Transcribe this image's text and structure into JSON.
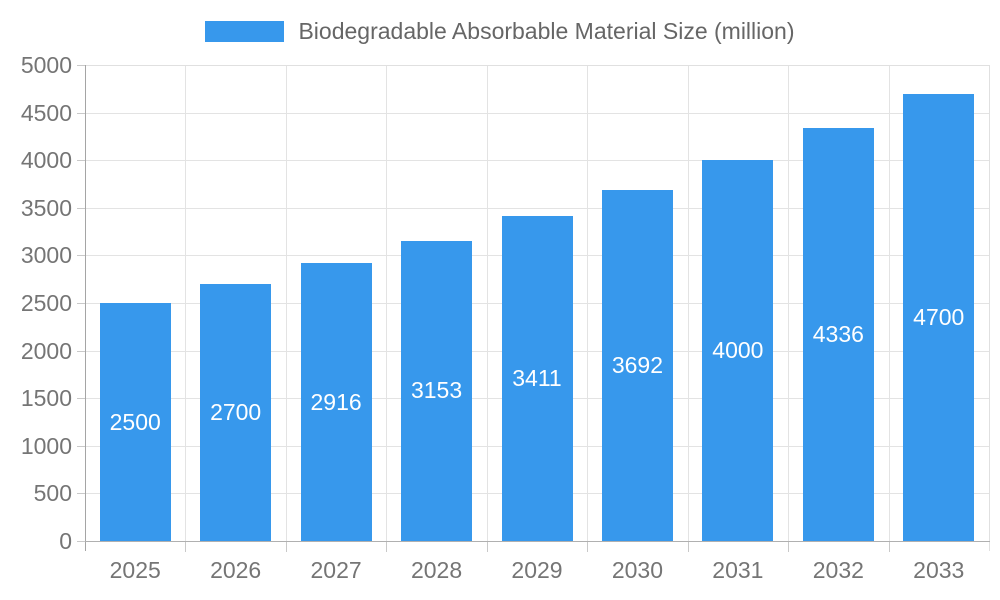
{
  "legend": {
    "label": "Biodegradable Absorbable Material Size (million)"
  },
  "chart_data": {
    "type": "bar",
    "title": "",
    "xlabel": "",
    "ylabel": "",
    "series_name": "Biodegradable Absorbable Material Size (million)",
    "categories": [
      "2025",
      "2026",
      "2027",
      "2028",
      "2029",
      "2030",
      "2031",
      "2032",
      "2033"
    ],
    "values": [
      2500,
      2700,
      2916,
      3153,
      3411,
      3692,
      4000,
      4336,
      4700
    ],
    "ylim": [
      0,
      5000
    ],
    "ytick_step": 500,
    "ytick_labels": [
      "0",
      "500",
      "1000",
      "1500",
      "2000",
      "2500",
      "3000",
      "3500",
      "4000",
      "4500",
      "5000"
    ],
    "grid": true,
    "legend_position": "top",
    "value_labels_position": "inside-center"
  },
  "colors": {
    "bar": "#3798EC",
    "grid": "#E3E3E3",
    "plot_border": "#E0E0E0",
    "y_axis_line": "#A5A5A5",
    "x_axis_line": "#B0B0B0",
    "tick": "#C9C9C9",
    "axis_text": "#757575",
    "legend_text": "#666666",
    "value_text": "#FFFFFF"
  }
}
